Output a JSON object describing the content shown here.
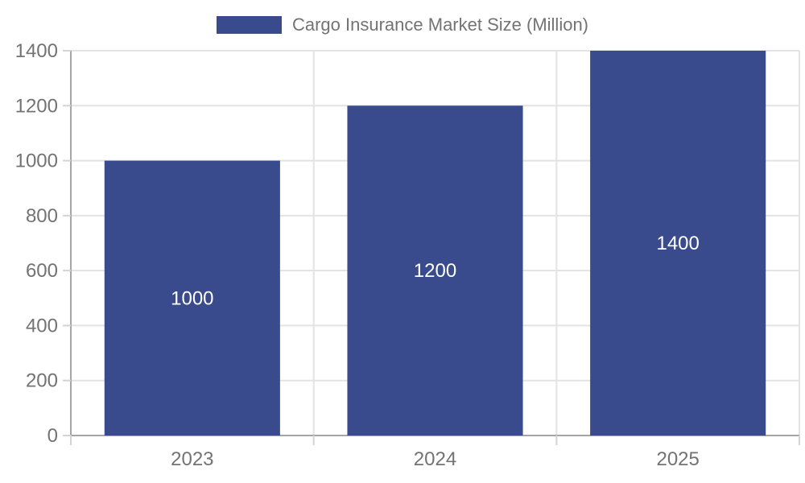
{
  "legend": {
    "label": "Cargo Insurance Market Size (Million)"
  },
  "colors": {
    "bar": "#394B8C",
    "bar_label": "#ffffff",
    "tick_label": "#737373",
    "grid": "#e3e3e3",
    "axis": "#a5a5a5",
    "tick": "#d4d4d4",
    "background": "#ffffff"
  },
  "chart_data": {
    "type": "bar",
    "title": "",
    "xlabel": "",
    "ylabel": "",
    "categories": [
      "2023",
      "2024",
      "2025"
    ],
    "series": [
      {
        "name": "Cargo Insurance Market Size (Million)",
        "values": [
          1000,
          1200,
          1400
        ],
        "data_labels": [
          "1000",
          "1200",
          "1400"
        ]
      }
    ],
    "ylim": [
      0,
      1400
    ],
    "ytick_interval": 200,
    "yticks": [
      0,
      200,
      400,
      600,
      800,
      1000,
      1200,
      1400
    ],
    "grid": true,
    "legend_position": "top-center"
  }
}
